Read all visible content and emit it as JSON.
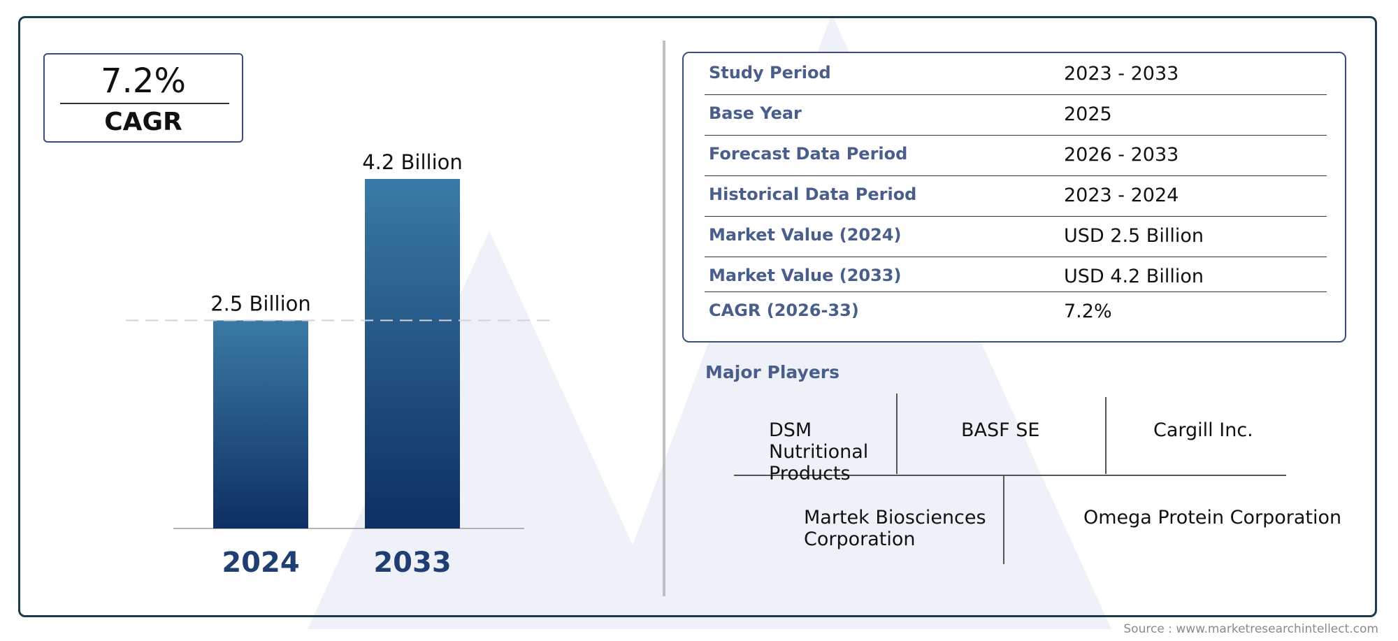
{
  "cagr_box": {
    "value": "7.2%",
    "label": "CAGR"
  },
  "chart_data": {
    "type": "bar",
    "categories": [
      "2024",
      "2033"
    ],
    "values": [
      2.5,
      4.2
    ],
    "data_labels": [
      "2.5 Billion",
      "4.2 Billion"
    ],
    "unit": "Billion",
    "ylim": [
      0,
      4.2
    ],
    "reference_line": 2.5,
    "colors": {
      "bar_top": "#3a7aa6",
      "bar_bottom": "#0e2f63",
      "category_text": "#1f3f73"
    }
  },
  "info_table": {
    "rows": [
      {
        "label": "Study Period",
        "value": "2023 - 2033"
      },
      {
        "label": "Base Year",
        "value": "2025"
      },
      {
        "label": "Forecast Data Period",
        "value": "2026 - 2033"
      },
      {
        "label": "Historical Data Period",
        "value": "2023 - 2024"
      },
      {
        "label": "Market Value (2024)",
        "value": "USD 2.5 Billion"
      },
      {
        "label": "Market Value (2033)",
        "value": "USD 4.2 Billion"
      },
      {
        "label": "CAGR (2026-33)",
        "value": "7.2%"
      }
    ]
  },
  "players": {
    "title": "Major Players",
    "row1": [
      "DSM\nNutritional\nProducts",
      "BASF SE",
      "Cargill Inc."
    ],
    "row2": [
      "Martek Biosciences\nCorporation",
      "Omega Protein Corporation"
    ]
  },
  "source": "Source : www.marketresearchintellect.com",
  "colors": {
    "frame": "#1b3a4b",
    "accent_text": "#4a5e8c",
    "watermark": "#eef2f8"
  }
}
